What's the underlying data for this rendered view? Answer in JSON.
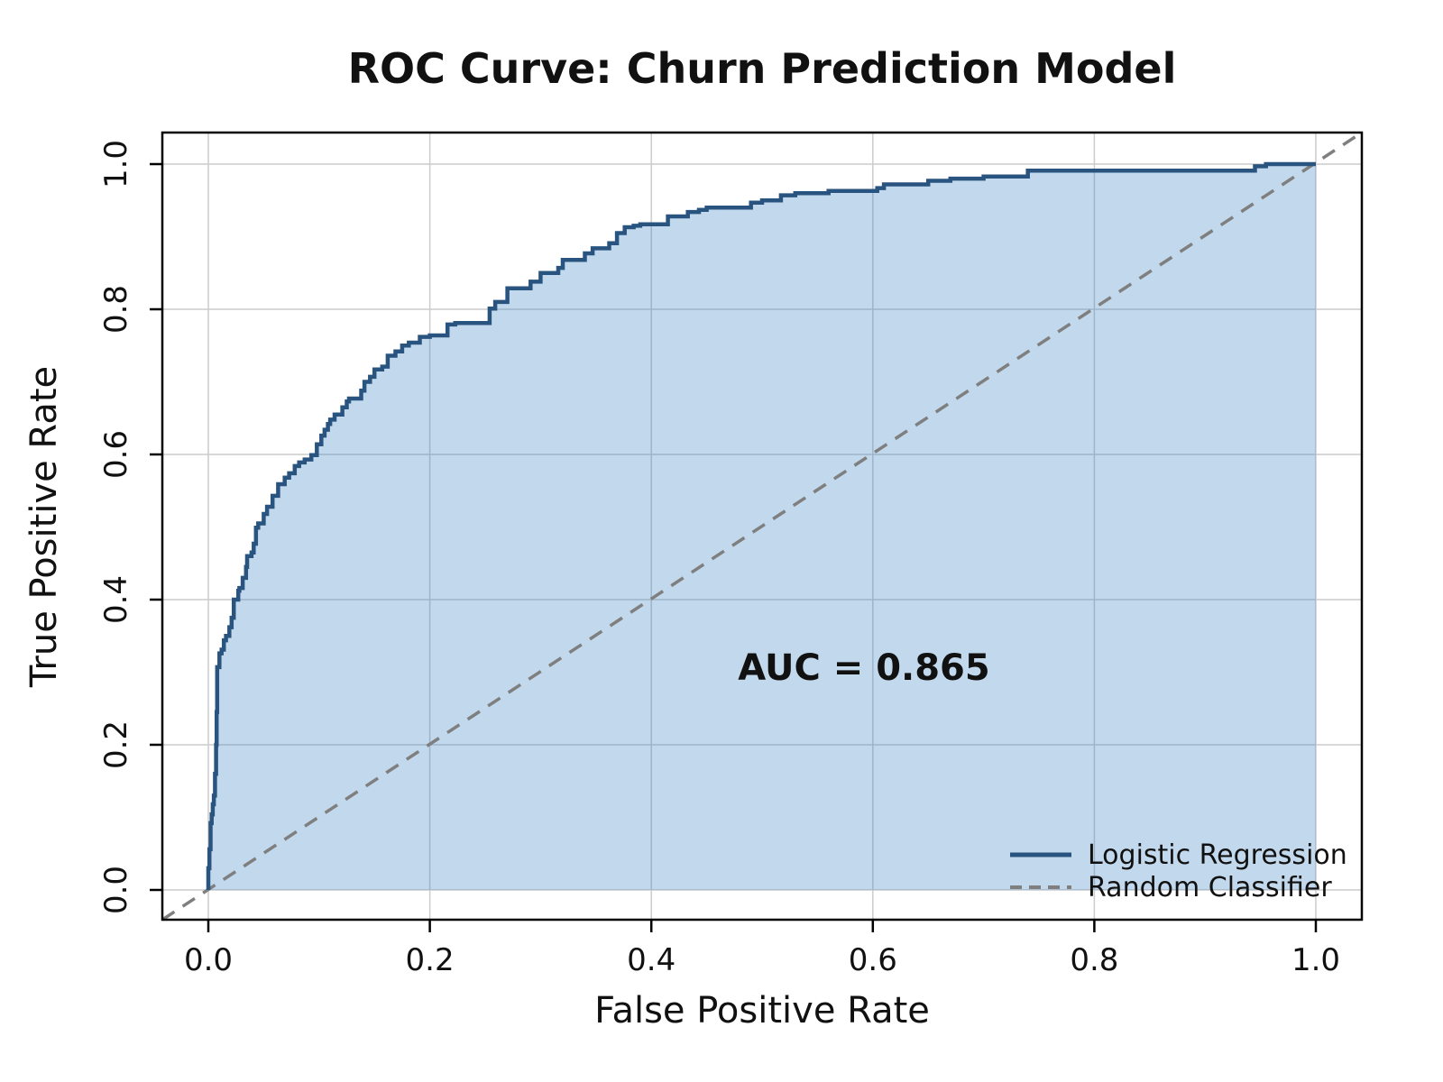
{
  "title": "ROC Curve: Churn Prediction Model",
  "axes": {
    "xlabel": "False Positive Rate",
    "ylabel": "True Positive Rate",
    "x_tick_labels": [
      "0.0",
      "0.2",
      "0.4",
      "0.6",
      "0.8",
      "1.0"
    ],
    "y_tick_labels": [
      "0.0",
      "0.2",
      "0.4",
      "0.6",
      "0.8",
      "1.0"
    ],
    "tick_values": [
      0,
      0.2,
      0.4,
      0.6,
      0.8,
      1.0
    ],
    "xlim": [
      -0.0415,
      1.0415
    ],
    "ylim": [
      -0.041,
      1.0435
    ],
    "grid": true
  },
  "annotation": {
    "auc_label": "AUC = 0.865"
  },
  "legend": {
    "position": "lower right",
    "items": [
      {
        "label": "Logistic Regression",
        "style": "solid"
      },
      {
        "label": "Random Classifier",
        "style": "dashed"
      }
    ]
  },
  "colors": {
    "curve": "#2a5480",
    "auc_text": "#2a5784",
    "fill": "rgba(52,125,192,0.30)",
    "diagonal": "#7f7f7f",
    "grid": "#cccccc",
    "frame": "#000000",
    "text": "#111111",
    "background": "#ffffff"
  },
  "chart_data": {
    "type": "line",
    "title": "ROC Curve: Churn Prediction Model",
    "xlabel": "False Positive Rate",
    "ylabel": "True Positive Rate",
    "auc": 0.865,
    "series": [
      {
        "name": "Logistic Regression",
        "style": "step",
        "fill_under": true,
        "points": [
          [
            0.0,
            0.0
          ],
          [
            0.001,
            0.03
          ],
          [
            0.002,
            0.056
          ],
          [
            0.003,
            0.092
          ],
          [
            0.004,
            0.104
          ],
          [
            0.005,
            0.118
          ],
          [
            0.006,
            0.13
          ],
          [
            0.007,
            0.16
          ],
          [
            0.0075,
            0.2
          ],
          [
            0.008,
            0.245
          ],
          [
            0.01,
            0.307
          ],
          [
            0.012,
            0.326
          ],
          [
            0.014,
            0.331
          ],
          [
            0.016,
            0.344
          ],
          [
            0.019,
            0.35
          ],
          [
            0.021,
            0.362
          ],
          [
            0.023,
            0.375
          ],
          [
            0.027,
            0.4
          ],
          [
            0.028,
            0.412
          ],
          [
            0.031,
            0.416
          ],
          [
            0.034,
            0.43
          ],
          [
            0.035,
            0.445
          ],
          [
            0.039,
            0.46
          ],
          [
            0.041,
            0.465
          ],
          [
            0.043,
            0.477
          ],
          [
            0.045,
            0.499
          ],
          [
            0.05,
            0.505
          ],
          [
            0.053,
            0.518
          ],
          [
            0.058,
            0.528
          ],
          [
            0.063,
            0.543
          ],
          [
            0.069,
            0.559
          ],
          [
            0.073,
            0.568
          ],
          [
            0.078,
            0.574
          ],
          [
            0.082,
            0.584
          ],
          [
            0.087,
            0.589
          ],
          [
            0.093,
            0.593
          ],
          [
            0.098,
            0.599
          ],
          [
            0.102,
            0.614
          ],
          [
            0.105,
            0.626
          ],
          [
            0.108,
            0.634
          ],
          [
            0.11,
            0.642
          ],
          [
            0.114,
            0.648
          ],
          [
            0.121,
            0.655
          ],
          [
            0.125,
            0.665
          ],
          [
            0.127,
            0.673
          ],
          [
            0.138,
            0.677
          ],
          [
            0.141,
            0.688
          ],
          [
            0.146,
            0.7
          ],
          [
            0.15,
            0.707
          ],
          [
            0.157,
            0.717
          ],
          [
            0.162,
            0.721
          ],
          [
            0.169,
            0.736
          ],
          [
            0.175,
            0.742
          ],
          [
            0.181,
            0.75
          ],
          [
            0.191,
            0.754
          ],
          [
            0.2,
            0.762
          ],
          [
            0.216,
            0.764
          ],
          [
            0.223,
            0.779
          ],
          [
            0.254,
            0.781
          ],
          [
            0.259,
            0.801
          ],
          [
            0.27,
            0.81
          ],
          [
            0.291,
            0.829
          ],
          [
            0.3,
            0.838
          ],
          [
            0.316,
            0.85
          ],
          [
            0.32,
            0.857
          ],
          [
            0.34,
            0.868
          ],
          [
            0.347,
            0.877
          ],
          [
            0.362,
            0.884
          ],
          [
            0.369,
            0.891
          ],
          [
            0.376,
            0.905
          ],
          [
            0.384,
            0.913
          ],
          [
            0.39,
            0.915
          ],
          [
            0.415,
            0.917
          ],
          [
            0.433,
            0.928
          ],
          [
            0.443,
            0.934
          ],
          [
            0.45,
            0.937
          ],
          [
            0.49,
            0.94
          ],
          [
            0.5,
            0.947
          ],
          [
            0.517,
            0.95
          ],
          [
            0.53,
            0.957
          ],
          [
            0.56,
            0.96
          ],
          [
            0.604,
            0.963
          ],
          [
            0.61,
            0.967
          ],
          [
            0.65,
            0.972
          ],
          [
            0.67,
            0.977
          ],
          [
            0.7,
            0.98
          ],
          [
            0.74,
            0.983
          ],
          [
            0.765,
            0.991
          ],
          [
            0.945,
            0.991
          ],
          [
            0.955,
            0.997
          ],
          [
            0.96,
            1.0
          ],
          [
            1.0,
            1.0
          ]
        ]
      },
      {
        "name": "Random Classifier",
        "style": "dashed-diagonal",
        "points": [
          [
            0,
            0
          ],
          [
            1,
            1
          ]
        ]
      }
    ]
  }
}
